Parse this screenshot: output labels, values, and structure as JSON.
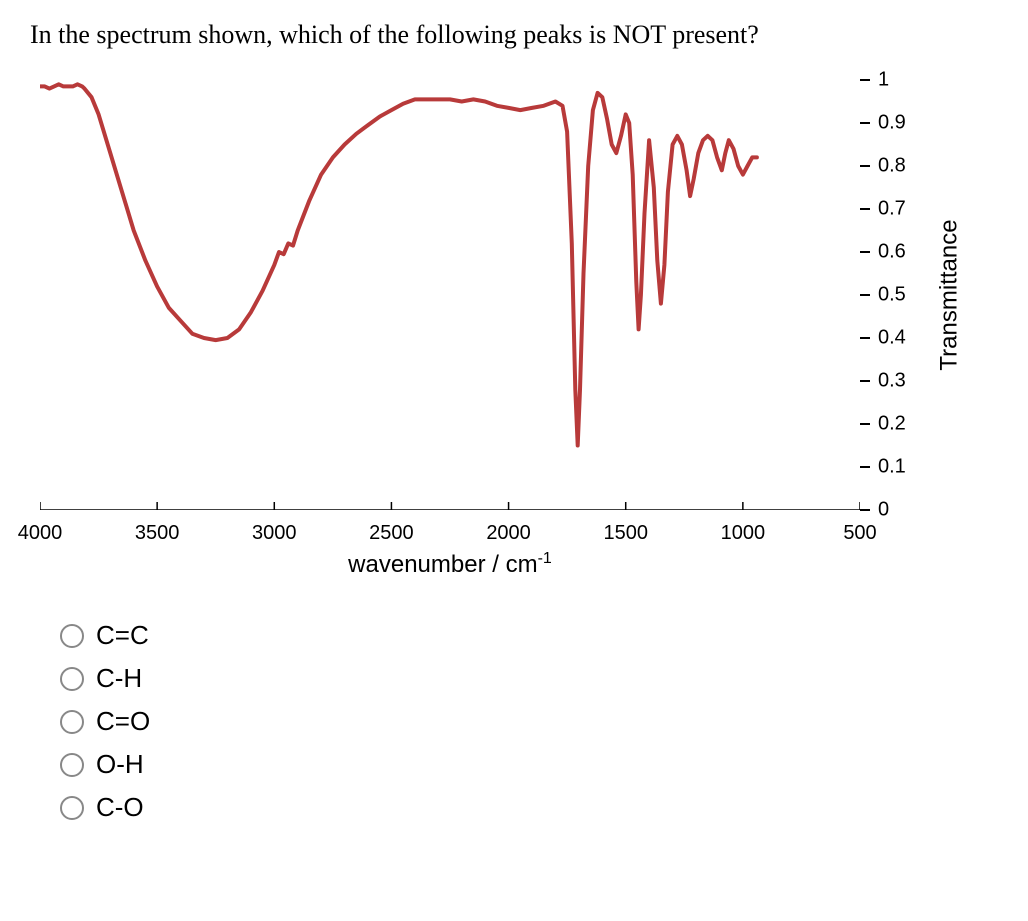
{
  "question": "In the spectrum shown, which of the following peaks is NOT present?",
  "chart": {
    "type": "line",
    "line_color": "#b83a3a",
    "line_width": 4,
    "background_color": "#ffffff",
    "axis_color": "#000000",
    "xlabel": "wavenumber / cm",
    "xlabel_sup": "-1",
    "ylabel": "Transmittance",
    "label_fontsize": 24,
    "tick_fontsize": 20,
    "xlim": [
      4000,
      500
    ],
    "ylim": [
      0,
      1
    ],
    "xticks": [
      4000,
      3500,
      3000,
      2500,
      2000,
      1500,
      1000,
      500
    ],
    "yticks": [
      0,
      0.1,
      0.2,
      0.3,
      0.4,
      0.5,
      0.6,
      0.7,
      0.8,
      0.9,
      1
    ],
    "data": [
      [
        4000,
        0.985
      ],
      [
        3980,
        0.985
      ],
      [
        3960,
        0.98
      ],
      [
        3940,
        0.985
      ],
      [
        3920,
        0.99
      ],
      [
        3900,
        0.985
      ],
      [
        3880,
        0.985
      ],
      [
        3860,
        0.985
      ],
      [
        3840,
        0.99
      ],
      [
        3820,
        0.985
      ],
      [
        3810,
        0.98
      ],
      [
        3780,
        0.96
      ],
      [
        3750,
        0.92
      ],
      [
        3700,
        0.83
      ],
      [
        3650,
        0.74
      ],
      [
        3600,
        0.65
      ],
      [
        3550,
        0.58
      ],
      [
        3500,
        0.52
      ],
      [
        3450,
        0.47
      ],
      [
        3400,
        0.44
      ],
      [
        3350,
        0.41
      ],
      [
        3300,
        0.4
      ],
      [
        3250,
        0.395
      ],
      [
        3200,
        0.4
      ],
      [
        3150,
        0.42
      ],
      [
        3100,
        0.46
      ],
      [
        3050,
        0.51
      ],
      [
        3000,
        0.57
      ],
      [
        2980,
        0.6
      ],
      [
        2960,
        0.595
      ],
      [
        2940,
        0.62
      ],
      [
        2920,
        0.615
      ],
      [
        2900,
        0.65
      ],
      [
        2850,
        0.72
      ],
      [
        2800,
        0.78
      ],
      [
        2750,
        0.82
      ],
      [
        2700,
        0.85
      ],
      [
        2650,
        0.875
      ],
      [
        2600,
        0.895
      ],
      [
        2550,
        0.915
      ],
      [
        2500,
        0.93
      ],
      [
        2450,
        0.945
      ],
      [
        2400,
        0.955
      ],
      [
        2350,
        0.955
      ],
      [
        2300,
        0.955
      ],
      [
        2250,
        0.955
      ],
      [
        2200,
        0.95
      ],
      [
        2150,
        0.955
      ],
      [
        2100,
        0.95
      ],
      [
        2050,
        0.94
      ],
      [
        2000,
        0.935
      ],
      [
        1950,
        0.93
      ],
      [
        1900,
        0.935
      ],
      [
        1850,
        0.94
      ],
      [
        1800,
        0.95
      ],
      [
        1770,
        0.94
      ],
      [
        1750,
        0.88
      ],
      [
        1730,
        0.62
      ],
      [
        1715,
        0.28
      ],
      [
        1705,
        0.15
      ],
      [
        1695,
        0.28
      ],
      [
        1680,
        0.55
      ],
      [
        1660,
        0.8
      ],
      [
        1640,
        0.93
      ],
      [
        1620,
        0.97
      ],
      [
        1600,
        0.96
      ],
      [
        1580,
        0.91
      ],
      [
        1560,
        0.85
      ],
      [
        1540,
        0.83
      ],
      [
        1520,
        0.87
      ],
      [
        1500,
        0.92
      ],
      [
        1485,
        0.9
      ],
      [
        1470,
        0.78
      ],
      [
        1455,
        0.53
      ],
      [
        1445,
        0.42
      ],
      [
        1435,
        0.5
      ],
      [
        1420,
        0.69
      ],
      [
        1400,
        0.86
      ],
      [
        1380,
        0.75
      ],
      [
        1365,
        0.58
      ],
      [
        1350,
        0.48
      ],
      [
        1335,
        0.57
      ],
      [
        1320,
        0.74
      ],
      [
        1300,
        0.85
      ],
      [
        1280,
        0.87
      ],
      [
        1260,
        0.85
      ],
      [
        1240,
        0.79
      ],
      [
        1225,
        0.73
      ],
      [
        1210,
        0.77
      ],
      [
        1190,
        0.83
      ],
      [
        1170,
        0.86
      ],
      [
        1150,
        0.87
      ],
      [
        1130,
        0.86
      ],
      [
        1110,
        0.82
      ],
      [
        1090,
        0.79
      ],
      [
        1075,
        0.83
      ],
      [
        1060,
        0.86
      ],
      [
        1040,
        0.84
      ],
      [
        1020,
        0.8
      ],
      [
        1000,
        0.78
      ],
      [
        980,
        0.8
      ],
      [
        960,
        0.82
      ],
      [
        940,
        0.82
      ]
    ]
  },
  "options": [
    {
      "label": "C=C",
      "selected": false
    },
    {
      "label": "C-H",
      "selected": false
    },
    {
      "label": "C=O",
      "selected": false
    },
    {
      "label": "O-H",
      "selected": false
    },
    {
      "label": "C-O",
      "selected": false
    }
  ]
}
